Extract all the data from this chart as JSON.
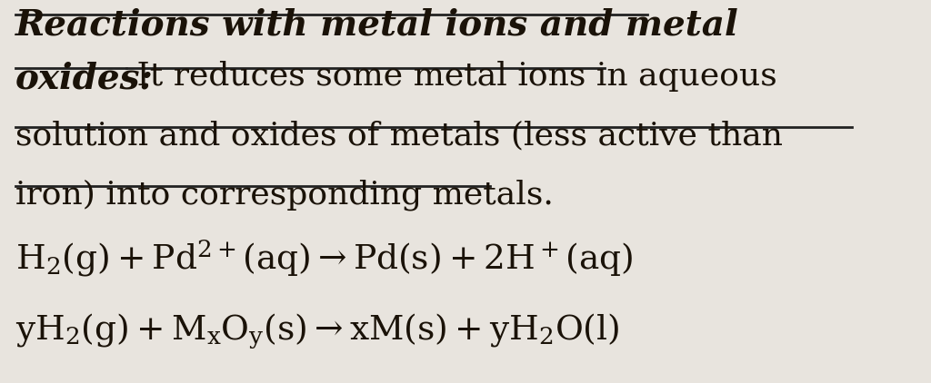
{
  "background_color": "#e8e4de",
  "text_color": "#1a1208",
  "figsize": [
    10.24,
    4.22
  ],
  "dpi": 100,
  "line1": "Reactions with metal ions and metal",
  "line2_bold": "oxides:",
  "line2_normal": " It reduces some metal ions in aqueous",
  "line3": "solution and oxides of metals (less active than",
  "line4": "iron) into corresponding metals.",
  "eq1": "H_2(g)+Pd^{2+}(aq)\\rightarrow Pd(s)+2H^+(aq)",
  "eq2": "yH_2(g)+M_xO_y(s)\\rightarrow xM(s)+yH_2O(l)",
  "fontsize_title": 28,
  "fontsize_body": 26,
  "fontsize_eq": 27,
  "underline_color": "#222222",
  "underline_lw": 2.0
}
